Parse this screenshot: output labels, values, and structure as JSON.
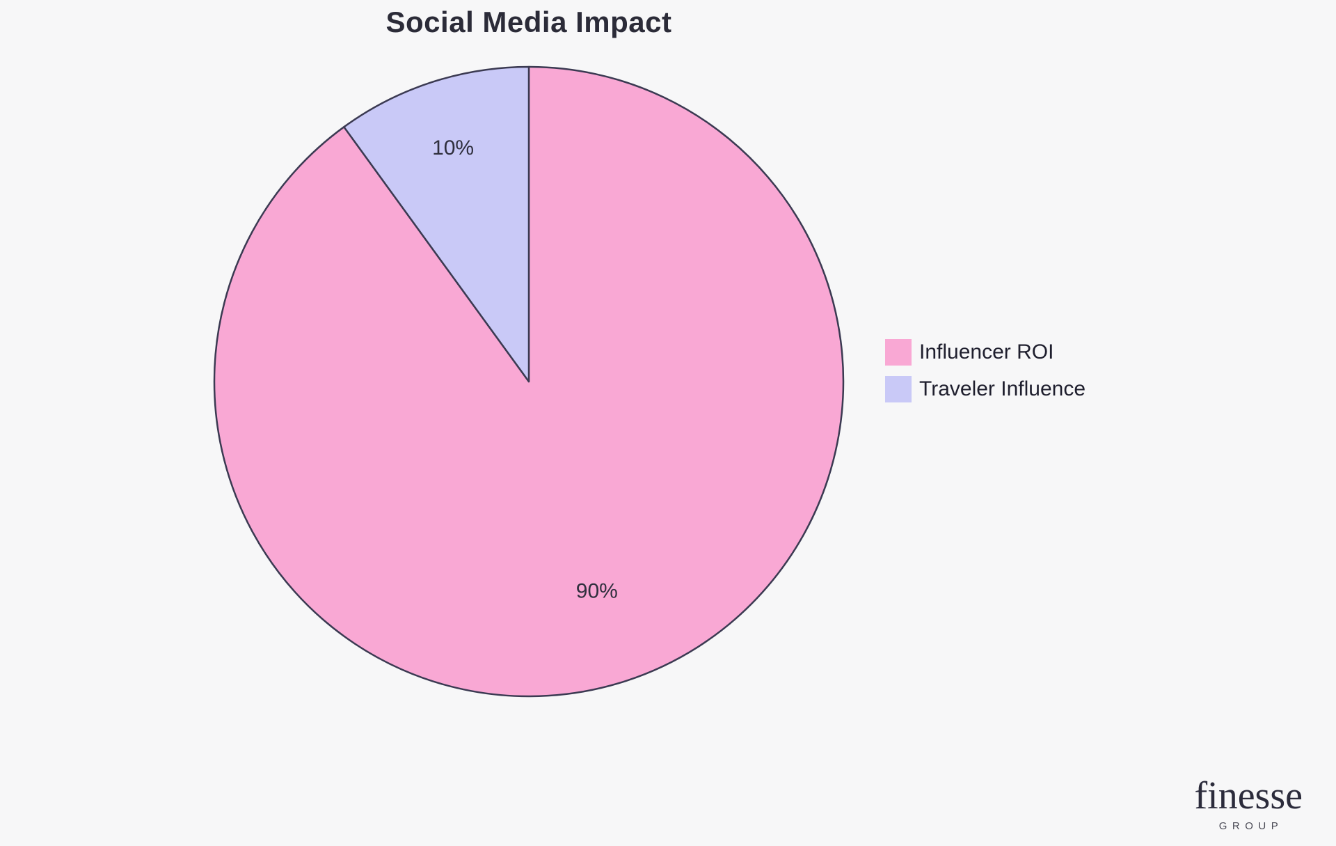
{
  "page": {
    "background": "#F7F7F8",
    "brand": {
      "name": "finesse",
      "sub": "GROUP"
    }
  },
  "chart_data": {
    "type": "pie",
    "title": "Social Media Impact",
    "slices": [
      {
        "label": "Influencer ROI",
        "value": 90,
        "pct_label": "90%",
        "color": "#F9A8D4"
      },
      {
        "label": "Traveler Influence",
        "value": 10,
        "pct_label": "10%",
        "color": "#C9C9F7"
      }
    ],
    "start_angle_deg": 0,
    "direction": "clockwise",
    "stroke_color": "#3B3A52",
    "stroke_width": 2.5,
    "label_color": "#2F2F3D",
    "label_font_size": 30,
    "legend_position": "right",
    "grid": false
  }
}
